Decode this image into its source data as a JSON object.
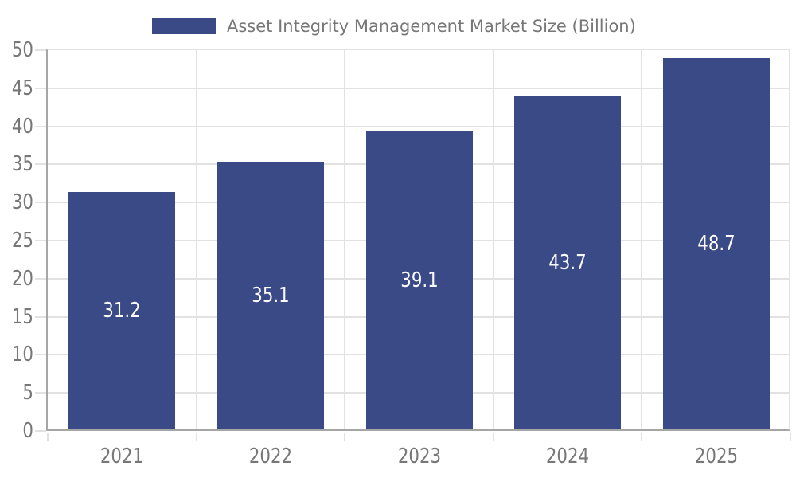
{
  "chart_data": {
    "type": "bar",
    "title": "Asset Integrity Management Market Size (Billion)",
    "categories": [
      "2021",
      "2022",
      "2023",
      "2024",
      "2025"
    ],
    "values": [
      31.2,
      35.1,
      39.1,
      43.7,
      48.7
    ],
    "xlabel": "",
    "ylabel": "",
    "ylim": [
      0,
      50
    ],
    "ytick_step": 5,
    "grid": true,
    "legend_position": "top-center",
    "value_labels_position": "inside-middle",
    "colors": {
      "bar": "#3A4A87",
      "grid": "#e2e2e2",
      "axis": "#a6a6a6",
      "tick_text": "#777777",
      "legend_text": "#777777",
      "value_text": "#fafafa",
      "background": "#ffffff"
    }
  }
}
